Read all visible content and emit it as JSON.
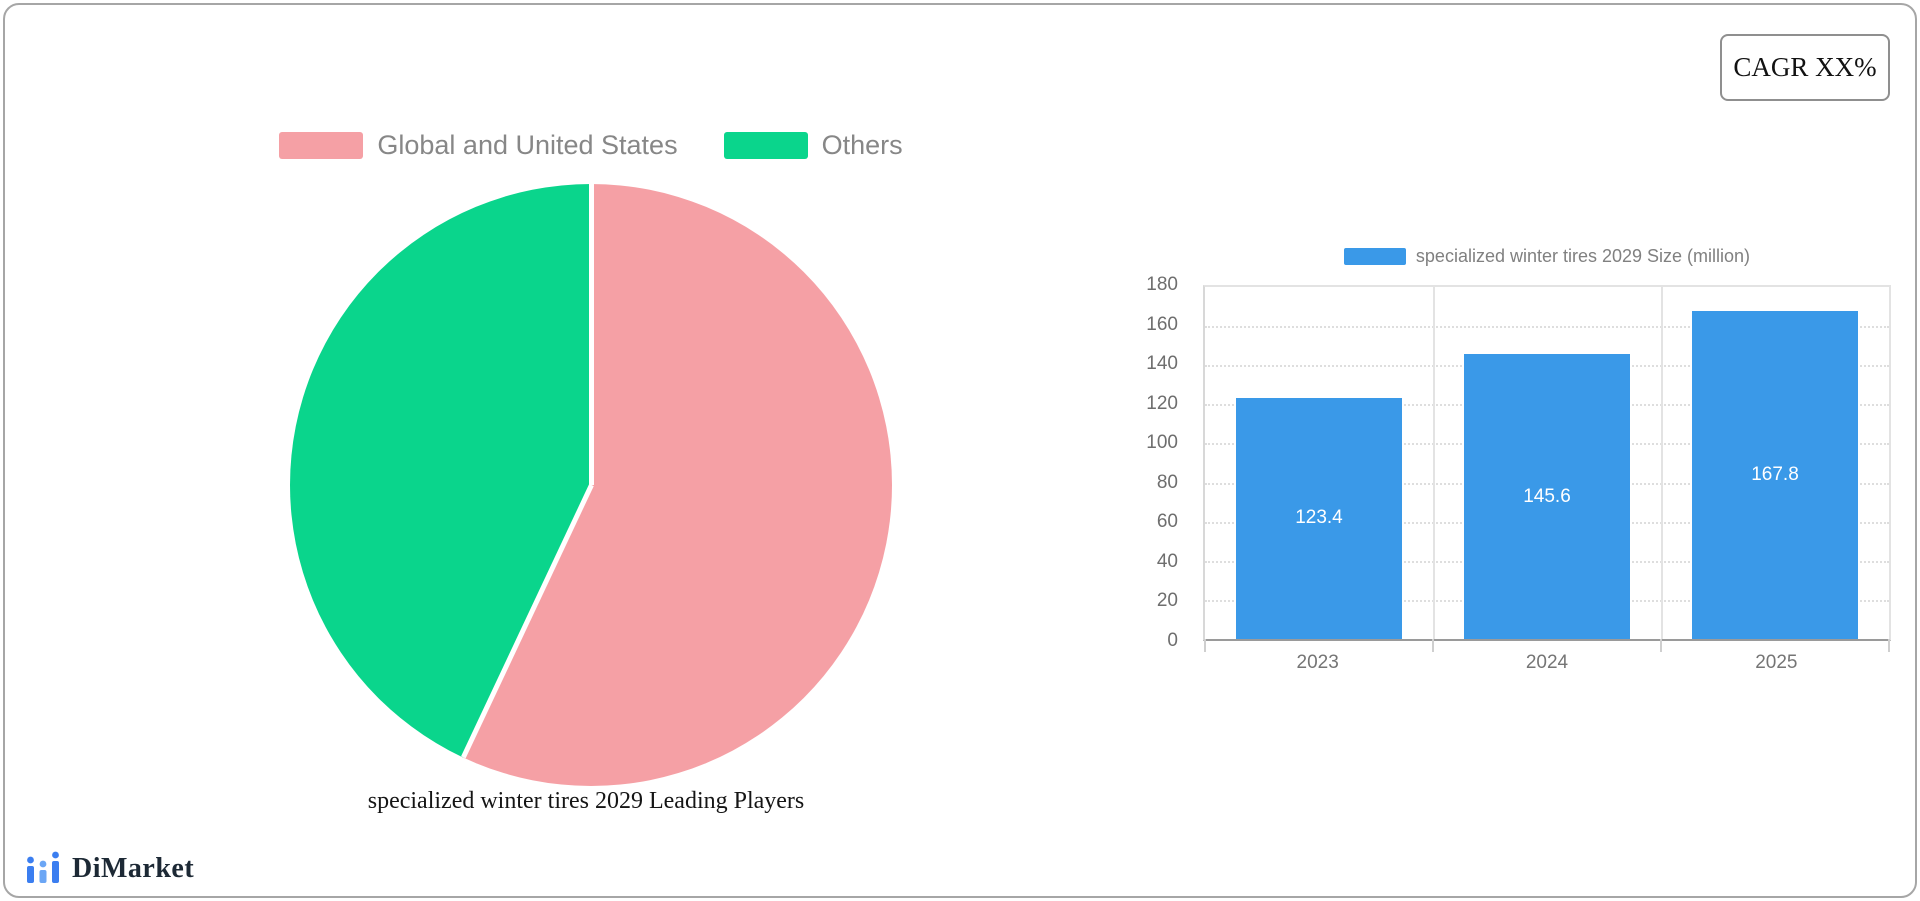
{
  "cagr": {
    "label": "CAGR XX%"
  },
  "branding": {
    "name": "DiMarket",
    "icon": "bar-chart-logo-icon",
    "icon_color": "#3b7ef0",
    "icon_color_light": "#6ba6f5"
  },
  "chart_data": [
    {
      "type": "pie",
      "title": "specialized winter tires 2029 Leading Players",
      "slices": [
        {
          "label": "Global and United States",
          "value": 57,
          "color": "#f5a0a5"
        },
        {
          "label": "Others",
          "value": 43,
          "color": "#0ad58c"
        }
      ],
      "value_format": "percent_share_estimated_from_arc",
      "start_angle_deg": 0,
      "direction": "clockwise",
      "slice_border_color": "#ffffff",
      "legend_position": "top"
    },
    {
      "type": "bar",
      "categories": [
        "2023",
        "2024",
        "2025"
      ],
      "series": [
        {
          "name": "specialized winter tires 2029 Size (million)",
          "color": "#3a99e8",
          "values": [
            123.4,
            145.6,
            167.8
          ]
        }
      ],
      "value_labels": [
        "123.4",
        "145.6",
        "167.8"
      ],
      "value_label_color": "#ffffff",
      "ylim": [
        0,
        180
      ],
      "yticks": [
        0,
        20,
        40,
        60,
        80,
        100,
        120,
        140,
        160,
        180
      ],
      "grid": true,
      "legend_position": "top"
    }
  ]
}
